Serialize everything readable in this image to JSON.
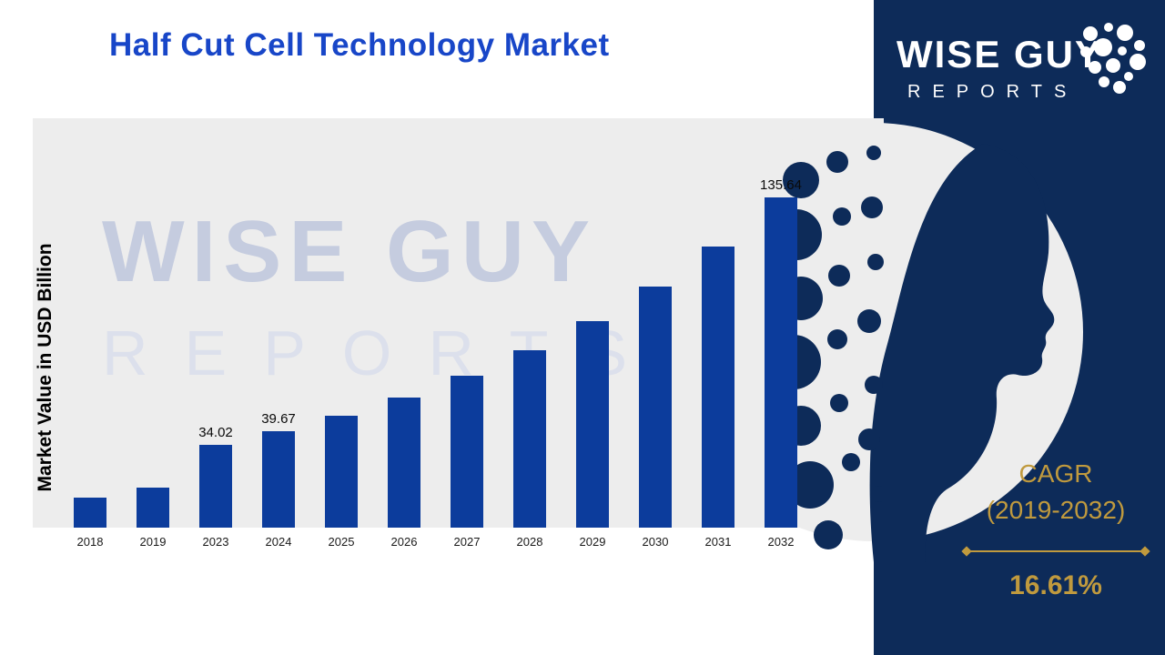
{
  "title": "Half Cut Cell Technology Market",
  "watermark": {
    "line1": "WISE GUY",
    "line2": "REPORTS"
  },
  "logo": {
    "line1": "WISE GUY",
    "line2": "REPORTS"
  },
  "sidebar": {
    "cagr_label": "CAGR",
    "cagr_period": "(2019-2032)",
    "cagr_value": "16.61%",
    "accent_color": "#C09A3E",
    "bg_color": "#0D2B59"
  },
  "chart_data": {
    "type": "bar",
    "title": "Half Cut Cell Technology Market",
    "xlabel": "",
    "ylabel": "Market Value in USD Billion",
    "categories": [
      "2018",
      "2019",
      "2023",
      "2024",
      "2025",
      "2026",
      "2027",
      "2028",
      "2029",
      "2030",
      "2031",
      "2032"
    ],
    "values": [
      12.5,
      16.5,
      34.02,
      39.67,
      45.9,
      53.5,
      62.4,
      72.8,
      84.9,
      99.0,
      115.5,
      135.64
    ],
    "data_labels": {
      "2023": "34.02",
      "2024": "39.67",
      "2032": "135.64"
    },
    "ylim": [
      0,
      168
    ],
    "bar_color": "#0C3C9C",
    "grid": false,
    "legend": false
  }
}
